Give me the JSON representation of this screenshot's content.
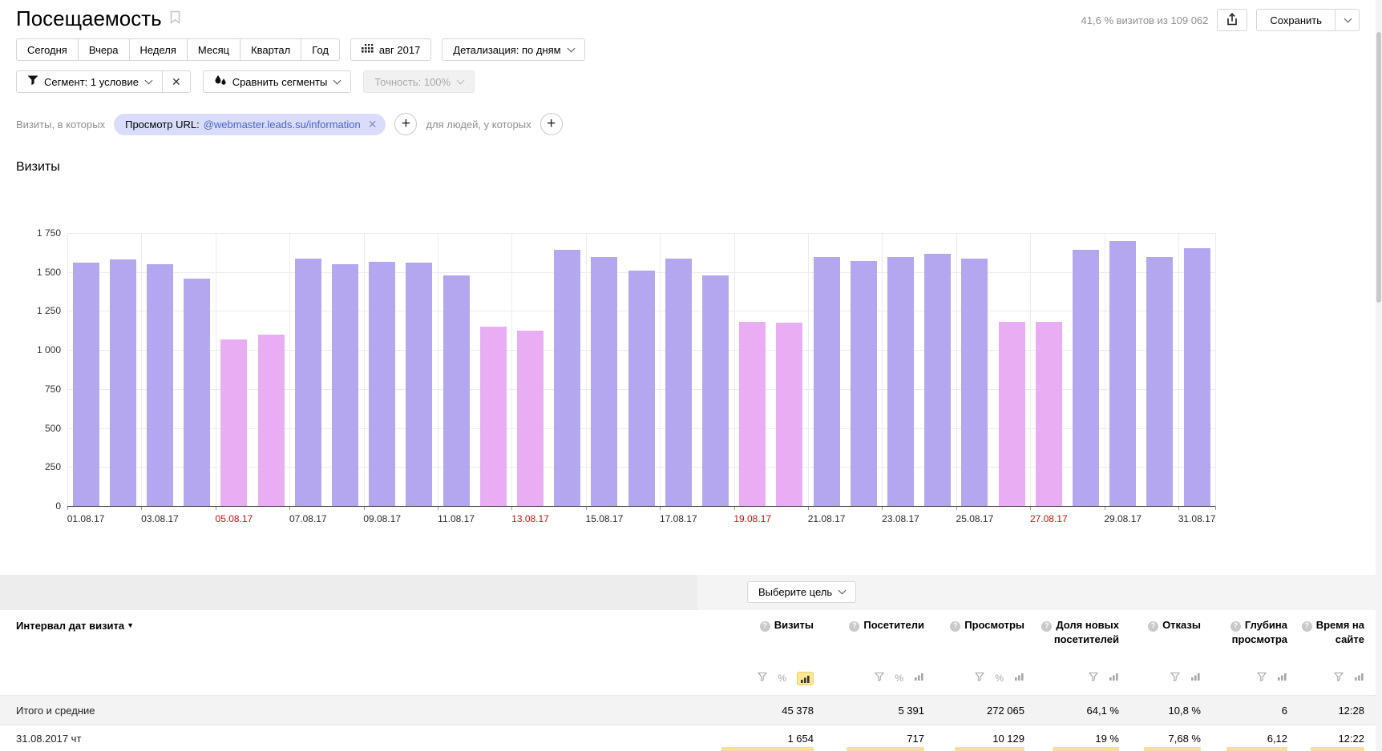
{
  "header": {
    "title": "Посещаемость",
    "visits_share": "41,6 % визитов из 109 062",
    "save_label": "Сохранить"
  },
  "toolbar": {
    "period_buttons": [
      "Сегодня",
      "Вчера",
      "Неделя",
      "Месяц",
      "Квартал",
      "Год"
    ],
    "calendar_label": "авг 2017",
    "detail_label": "Детализация: по дням",
    "segment_label": "Сегмент: 1 условие",
    "compare_label": "Сравнить сегменты",
    "accuracy_label": "Точность: 100%"
  },
  "filters": {
    "visits_prefix": "Визиты, в которых",
    "chip_label": "Просмотр URL:",
    "chip_value": "@webmaster.leads.su/information",
    "people_prefix": "для людей, у которых"
  },
  "chart_section_title": "Визиты",
  "colors": {
    "bar": "#b4a7f0",
    "bar_weekend": "#e9adf4",
    "weekend_label": "#cc1111",
    "selected_icon_bg": "#ffe793",
    "row_bar": "#f8dda2"
  },
  "chart_data": {
    "type": "bar",
    "title": "Визиты",
    "xlabel": "",
    "ylabel": "",
    "ylim": [
      0,
      1750
    ],
    "grid": true,
    "legend": false,
    "dates": [
      "01.08.17",
      "02.08.17",
      "03.08.17",
      "04.08.17",
      "05.08.17",
      "06.08.17",
      "07.08.17",
      "08.08.17",
      "09.08.17",
      "10.08.17",
      "11.08.17",
      "12.08.17",
      "13.08.17",
      "14.08.17",
      "15.08.17",
      "16.08.17",
      "17.08.17",
      "18.08.17",
      "19.08.17",
      "20.08.17",
      "21.08.17",
      "22.08.17",
      "23.08.17",
      "24.08.17",
      "25.08.17",
      "26.08.17",
      "27.08.17",
      "28.08.17",
      "29.08.17",
      "30.08.17",
      "31.08.17"
    ],
    "values": [
      1560,
      1580,
      1550,
      1460,
      1065,
      1100,
      1585,
      1550,
      1565,
      1560,
      1480,
      1150,
      1125,
      1640,
      1595,
      1510,
      1585,
      1480,
      1180,
      1175,
      1595,
      1570,
      1595,
      1615,
      1585,
      1180,
      1180,
      1640,
      1700,
      1595,
      1654
    ],
    "weekend_indices": [
      4,
      5,
      11,
      12,
      18,
      19,
      25,
      26
    ],
    "yticks": [
      {
        "value": 0,
        "label": "0"
      },
      {
        "value": 250,
        "label": "250"
      },
      {
        "value": 500,
        "label": "500"
      },
      {
        "value": 750,
        "label": "750"
      },
      {
        "value": 1000,
        "label": "1 000"
      },
      {
        "value": 1250,
        "label": "1 250"
      },
      {
        "value": 1500,
        "label": "1 500"
      },
      {
        "value": 1750,
        "label": "1 750"
      }
    ],
    "tick_labels": [
      {
        "label": "01.08.17",
        "weekend": false
      },
      {
        "label": "03.08.17",
        "weekend": false
      },
      {
        "label": "05.08.17",
        "weekend": true
      },
      {
        "label": "07.08.17",
        "weekend": false
      },
      {
        "label": "09.08.17",
        "weekend": false
      },
      {
        "label": "11.08.17",
        "weekend": false
      },
      {
        "label": "13.08.17",
        "weekend": true
      },
      {
        "label": "15.08.17",
        "weekend": false
      },
      {
        "label": "17.08.17",
        "weekend": false
      },
      {
        "label": "19.08.17",
        "weekend": true
      },
      {
        "label": "21.08.17",
        "weekend": false
      },
      {
        "label": "23.08.17",
        "weekend": false
      },
      {
        "label": "25.08.17",
        "weekend": false
      },
      {
        "label": "27.08.17",
        "weekend": true
      },
      {
        "label": "29.08.17",
        "weekend": false
      },
      {
        "label": "31.08.17",
        "weekend": false
      }
    ]
  },
  "table": {
    "goal_button": "Выберите цель",
    "dimension_header": "Интервал дат визита",
    "columns": [
      {
        "label": "Визиты",
        "icons": [
          "filter",
          "percent",
          "chart"
        ],
        "selected": "chart"
      },
      {
        "label": "Посетители",
        "icons": [
          "filter",
          "percent",
          "chart"
        ]
      },
      {
        "label": "Просмотры",
        "icons": [
          "filter",
          "percent",
          "chart"
        ]
      },
      {
        "label": "Доля новых посетителей",
        "icons": [
          "filter",
          "chart"
        ]
      },
      {
        "label": "Отказы",
        "icons": [
          "filter",
          "chart"
        ]
      },
      {
        "label": "Глубина просмотра",
        "icons": [
          "filter",
          "chart"
        ]
      },
      {
        "label": "Время на сайте",
        "icons": [
          "filter",
          "chart"
        ]
      }
    ],
    "rows": [
      {
        "label": "Итого и средние",
        "values": [
          "45 378",
          "5 391",
          "272 065",
          "64,1 %",
          "10,8 %",
          "6",
          "12:28"
        ],
        "bars": false
      },
      {
        "label": "31.08.2017 чт",
        "values": [
          "1 654",
          "717",
          "10 129",
          "19 %",
          "7,68 %",
          "6,12",
          "12:22"
        ],
        "bars": true
      }
    ]
  }
}
